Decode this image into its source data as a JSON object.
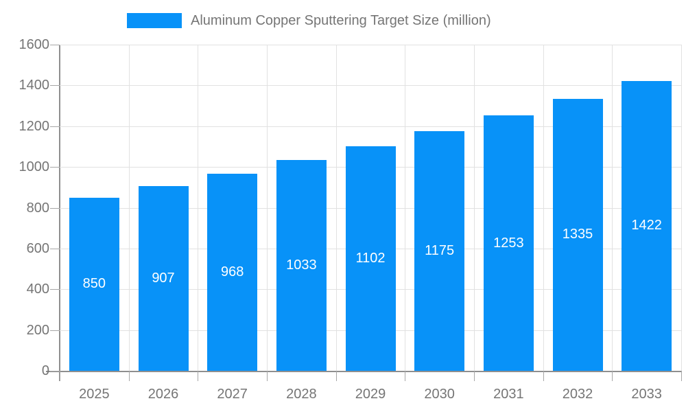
{
  "legend": {
    "label": "Aluminum Copper Sputtering Target Size (million)"
  },
  "chart_data": {
    "type": "bar",
    "title": "Aluminum Copper Sputtering Target Size (million)",
    "categories": [
      "2025",
      "2026",
      "2027",
      "2028",
      "2029",
      "2030",
      "2031",
      "2032",
      "2033"
    ],
    "values": [
      850,
      907,
      968,
      1033,
      1102,
      1175,
      1253,
      1335,
      1422
    ],
    "xlabel": "",
    "ylabel": "",
    "ylim": [
      0,
      1600
    ],
    "yticks": [
      0,
      200,
      400,
      600,
      800,
      1000,
      1200,
      1400,
      1600
    ],
    "grid": true,
    "legend_position": "top",
    "value_labels": "inside-center",
    "colors": {
      "bar": "#0892f8",
      "value_label": "#ffffff",
      "axis": "#8f8f8f",
      "tick": "#a6a6a6",
      "gridline": "#e1e1e1",
      "text": "#757575"
    }
  }
}
